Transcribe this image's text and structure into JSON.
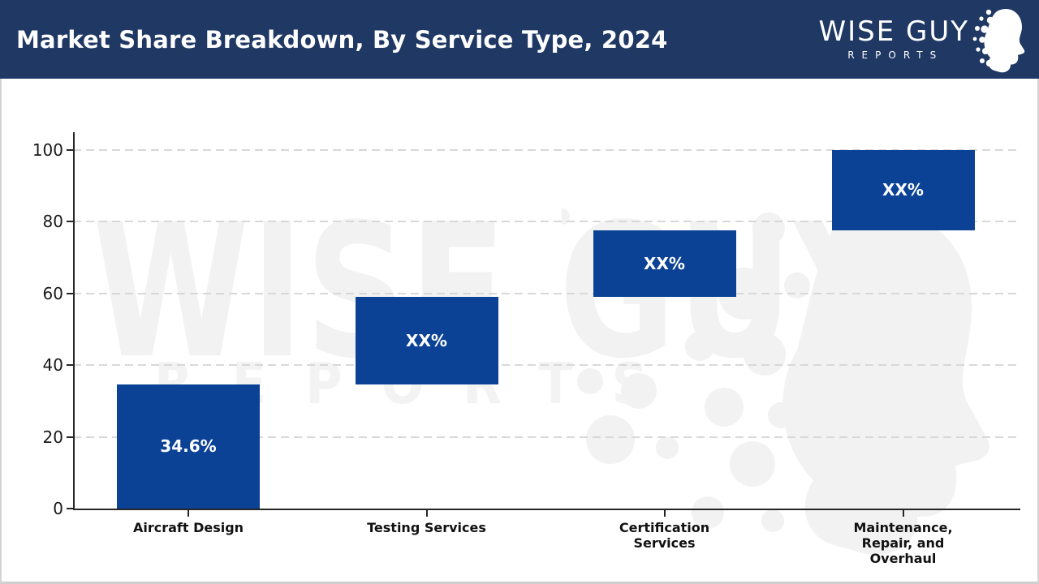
{
  "header": {
    "title": "Market Share Breakdown, By Service Type, 2024",
    "logo": {
      "name": "WISE GUY",
      "sub": "REPORTS"
    }
  },
  "watermark": {
    "name": "WISE GUY",
    "sub": "REPORTS"
  },
  "chart_data": {
    "type": "waterfall",
    "title": "Market Share Breakdown, By Service Type, 2024",
    "categories": [
      "Aircraft Design",
      "Testing Services",
      "Certification\nServices",
      "Maintenance,\nRepair, and\nOverhaul"
    ],
    "segments": [
      {
        "category": "Aircraft Design",
        "start": 0,
        "end": 34.6,
        "value_label": "34.6%"
      },
      {
        "category": "Testing Services",
        "start": 34.6,
        "end": 59.0,
        "value_label": "XX%"
      },
      {
        "category": "Certification Services",
        "start": 59.0,
        "end": 77.5,
        "value_label": "XX%"
      },
      {
        "category": "Maintenance, Repair, and Overhaul",
        "start": 77.5,
        "end": 100.0,
        "value_label": "XX%"
      }
    ],
    "ylim": [
      0,
      100
    ],
    "yticks": [
      "0",
      "20",
      "40",
      "60",
      "80",
      "100"
    ],
    "grid": "horizontal-dashed",
    "legend": null,
    "bar_color": "#0b4296",
    "value_label_color": "#ffffff"
  },
  "colors": {
    "header_bg": "#1f3864",
    "bar": "#0b4296",
    "grid": "#d8d8d8",
    "axis": "#262626",
    "tick_label": "#1a1a1a",
    "watermark": "#f2f2f2"
  }
}
